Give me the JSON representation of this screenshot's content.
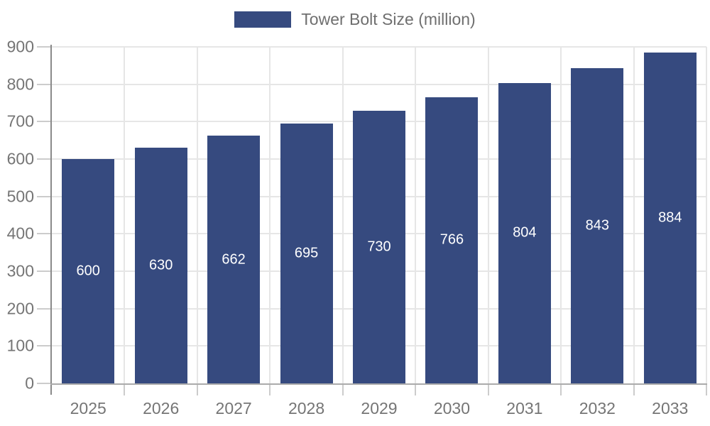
{
  "legend": {
    "label": "Tower Bolt Size (million)"
  },
  "chart_data": {
    "type": "bar",
    "title": "Tower Bolt Size (million)",
    "categories": [
      "2025",
      "2026",
      "2027",
      "2028",
      "2029",
      "2030",
      "2031",
      "2032",
      "2033"
    ],
    "series": [
      {
        "name": "Tower Bolt Size (million)",
        "values": [
          600,
          630,
          662,
          695,
          730,
          766,
          804,
          843,
          884
        ]
      }
    ],
    "value_labels": [
      "600",
      "630",
      "662",
      "695",
      "730",
      "766",
      "804",
      "843",
      "884"
    ],
    "xlabel": "",
    "ylabel": "",
    "ylim": [
      0,
      900
    ],
    "yticks": [
      0,
      100,
      200,
      300,
      400,
      500,
      600,
      700,
      800,
      900
    ],
    "grid": true,
    "legend_position": "top"
  },
  "colors": {
    "bar": "#364A7F",
    "value_label": "#ffffff",
    "axis_label": "#757575",
    "legend_label": "#6f6f6f",
    "grid_line": "#e6e6e6",
    "tick_line": "#cccccc",
    "x_axis_line": "#ababab",
    "y_axis_line": "#8a8a8a",
    "background": "#ffffff"
  }
}
